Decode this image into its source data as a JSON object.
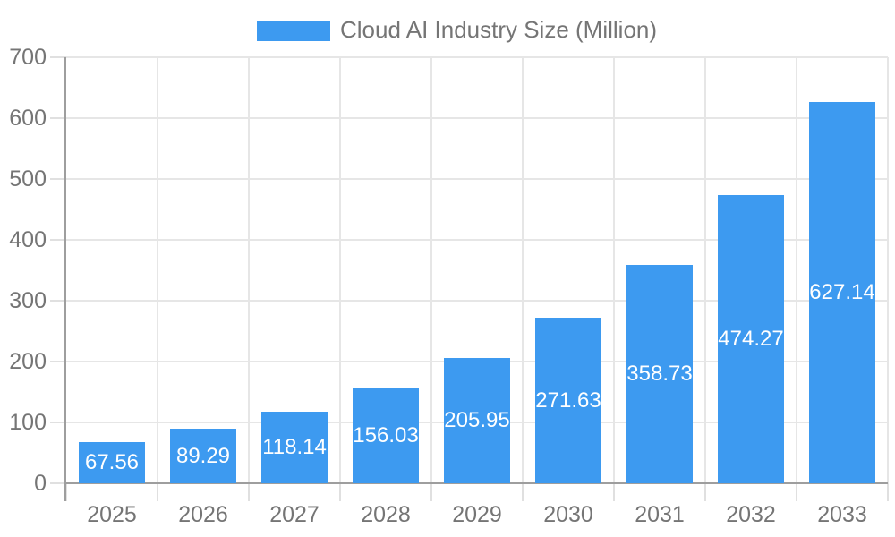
{
  "legend": {
    "label": "Cloud AI Industry Size (Million)"
  },
  "chart_data": {
    "type": "bar",
    "title": "",
    "xlabel": "",
    "ylabel": "",
    "categories": [
      "2025",
      "2026",
      "2027",
      "2028",
      "2029",
      "2030",
      "2031",
      "2032",
      "2033"
    ],
    "series": [
      {
        "name": "Cloud AI Industry Size (Million)",
        "values": [
          67.56,
          89.29,
          118.14,
          156.03,
          205.95,
          271.63,
          358.73,
          474.27,
          627.14
        ]
      }
    ],
    "value_labels": [
      "67.56",
      "89.29",
      "118.14",
      "156.03",
      "205.95",
      "271.63",
      "358.73",
      "474.27",
      "627.14"
    ],
    "ylim": [
      0,
      700
    ],
    "ytick_step": 100,
    "ytick_labels": [
      "0",
      "100",
      "200",
      "300",
      "400",
      "500",
      "600",
      "700"
    ],
    "grid": true,
    "legend_position": "top-center",
    "colors": {
      "bar": "#3d9af0",
      "value_label": "#ffffff",
      "axis_label": "#757575",
      "gridline": "#e6e6e6",
      "tick": "#e0e0e0",
      "axis_line": "#9e9e9e",
      "background": "#ffffff"
    }
  }
}
